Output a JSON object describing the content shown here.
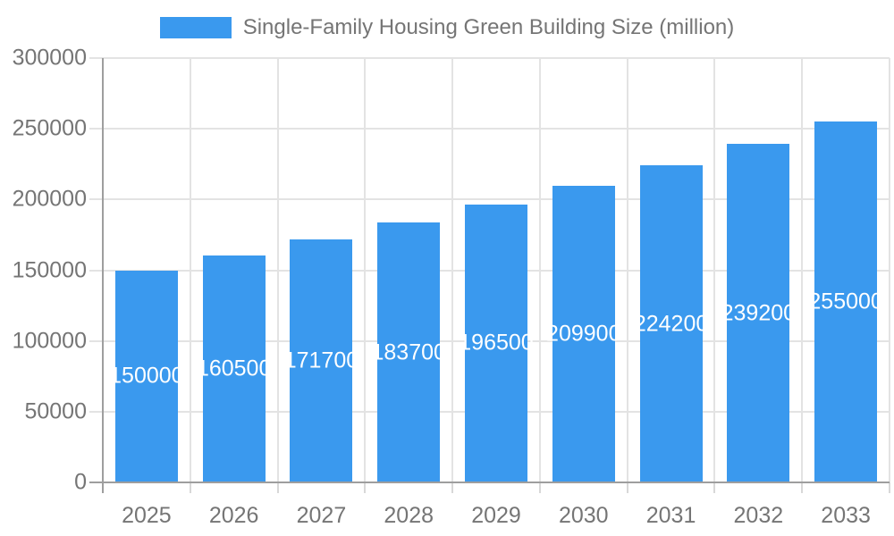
{
  "chart_data": {
    "type": "bar",
    "title": "Single-Family Housing Green Building Size (million)",
    "legend": {
      "label": "Single-Family Housing Green Building Size (million)",
      "position": "top-center"
    },
    "categories": [
      "2025",
      "2026",
      "2027",
      "2028",
      "2029",
      "2030",
      "2031",
      "2032",
      "2033"
    ],
    "series": [
      {
        "name": "Single-Family Housing Green Building Size (million)",
        "values": [
          150000,
          160500,
          171700,
          183700,
          196500,
          209900,
          224200,
          239200,
          255000
        ]
      }
    ],
    "xlabel": "",
    "ylabel": "",
    "ylim": [
      0,
      300000
    ],
    "y_ticks": [
      0,
      50000,
      100000,
      150000,
      200000,
      250000,
      300000
    ],
    "grid": true,
    "value_labels_position": "inside-center",
    "colors": {
      "bar": "#3A99EE",
      "value_label": "#FFFFFF",
      "axis_text": "#757575",
      "grid_line": "#E3E3E3",
      "axis_line": "#9E9E9E",
      "tick": "#D8D8D8",
      "background": "#FFFFFF"
    }
  }
}
